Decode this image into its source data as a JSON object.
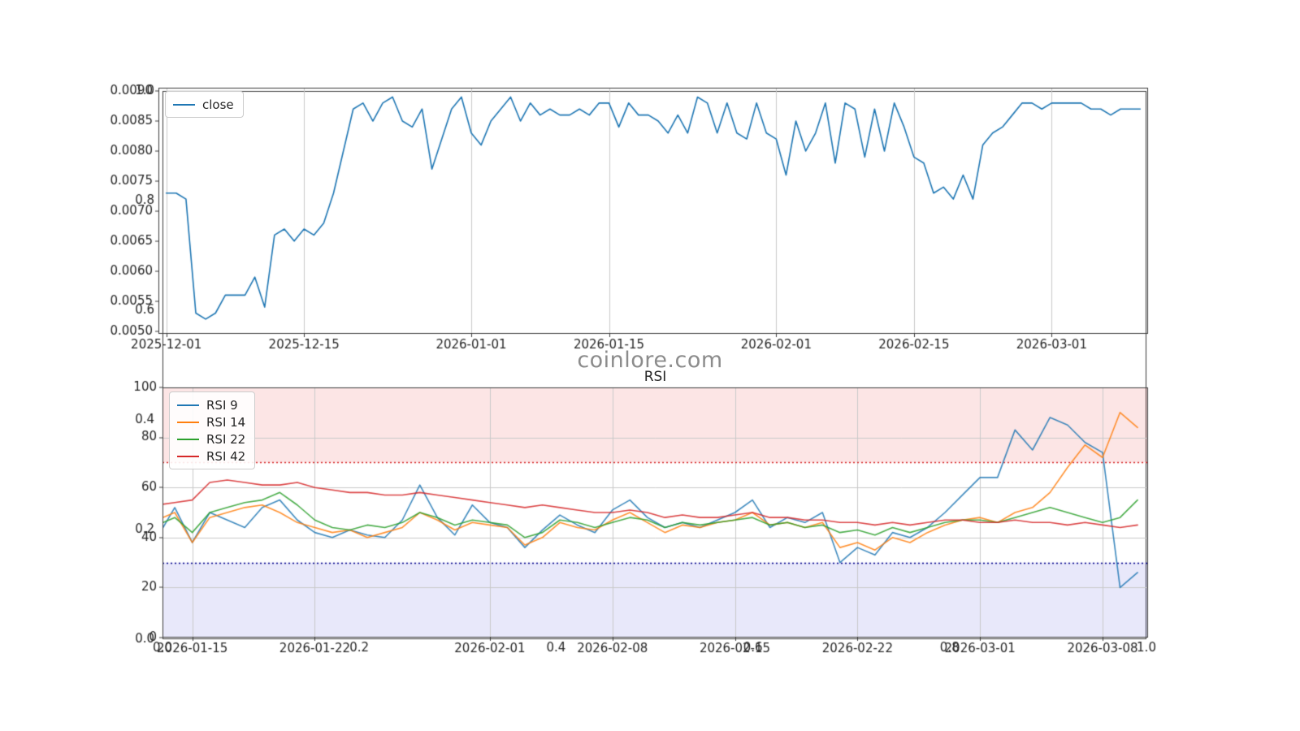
{
  "watermark": "coinlore.com",
  "phantom_axis": {
    "y_tick_labels": [
      "1.0",
      "0.8",
      "0.6",
      "0.4",
      "0.2",
      "0.0"
    ],
    "x_tick_labels": [
      "0.0",
      "0.2",
      "0.4",
      "0.6",
      "0.8",
      "1.0"
    ]
  },
  "chart_data": [
    {
      "id": "price",
      "type": "line",
      "title": "",
      "xlabel": "",
      "ylabel": "",
      "legend_position": "upper left",
      "grid": {
        "vertical": true,
        "horizontal": false
      },
      "x_start_day": 0,
      "xlim_days": [
        -0.8,
        99.8
      ],
      "ylim": [
        0.004955,
        0.009055
      ],
      "y_ticks": [
        {
          "label": "0.0050",
          "value": 0.005
        },
        {
          "label": "0.0055",
          "value": 0.0055
        },
        {
          "label": "0.0060",
          "value": 0.006
        },
        {
          "label": "0.0065",
          "value": 0.0065
        },
        {
          "label": "0.0070",
          "value": 0.007
        },
        {
          "label": "0.0075",
          "value": 0.0075
        },
        {
          "label": "0.0080",
          "value": 0.008
        },
        {
          "label": "0.0085",
          "value": 0.0085
        },
        {
          "label": "0.0090",
          "value": 0.009
        }
      ],
      "x_ticks": [
        {
          "label": "2025-12-01",
          "day": 0
        },
        {
          "label": "2025-12-15",
          "day": 14
        },
        {
          "label": "2026-01-01",
          "day": 31
        },
        {
          "label": "2026-01-15",
          "day": 45
        },
        {
          "label": "2026-02-01",
          "day": 62
        },
        {
          "label": "2026-02-15",
          "day": 76
        },
        {
          "label": "2026-03-01",
          "day": 90
        }
      ],
      "series": [
        {
          "name": "close",
          "color": "#1f77b4",
          "alpha": 1,
          "values": [
            0.0073,
            0.0073,
            0.0072,
            0.0053,
            0.0052,
            0.0053,
            0.0056,
            0.0056,
            0.0056,
            0.0059,
            0.0054,
            0.0066,
            0.0067,
            0.0065,
            0.0067,
            0.0066,
            0.0068,
            0.0073,
            0.008,
            0.0087,
            0.0088,
            0.0085,
            0.0088,
            0.0089,
            0.0085,
            0.0084,
            0.0087,
            0.0077,
            0.0082,
            0.0087,
            0.0089,
            0.0083,
            0.0081,
            0.0085,
            0.0087,
            0.0089,
            0.0085,
            0.0088,
            0.0086,
            0.0087,
            0.0086,
            0.0086,
            0.0087,
            0.0086,
            0.0088,
            0.0088,
            0.0084,
            0.0088,
            0.0086,
            0.0086,
            0.0085,
            0.0083,
            0.0086,
            0.0083,
            0.0089,
            0.0088,
            0.0083,
            0.0088,
            0.0083,
            0.0082,
            0.0088,
            0.0083,
            0.0082,
            0.0076,
            0.0085,
            0.008,
            0.0083,
            0.0088,
            0.0078,
            0.0088,
            0.0087,
            0.0079,
            0.0087,
            0.008,
            0.0088,
            0.0084,
            0.0079,
            0.0078,
            0.0073,
            0.0074,
            0.0072,
            0.0076,
            0.0072,
            0.0081,
            0.0083,
            0.0084,
            0.0086,
            0.0088,
            0.0088,
            0.0087,
            0.0088,
            0.0088,
            0.0088,
            0.0088,
            0.0087,
            0.0087,
            0.0086,
            0.0087,
            0.0087,
            0.0087
          ]
        }
      ]
    },
    {
      "id": "rsi",
      "type": "line",
      "title": "RSI",
      "xlabel": "",
      "ylabel": "",
      "legend_position": "upper left",
      "grid": {
        "vertical": true,
        "horizontal": true
      },
      "x_start_day": 43,
      "xlim_days": [
        43.3,
        99.6
      ],
      "ylim": [
        0,
        100
      ],
      "y_ticks": [
        {
          "label": "0",
          "value": 0
        },
        {
          "label": "20",
          "value": 20
        },
        {
          "label": "40",
          "value": 40
        },
        {
          "label": "60",
          "value": 60
        },
        {
          "label": "80",
          "value": 80
        },
        {
          "label": "100",
          "value": 100
        }
      ],
      "x_ticks": [
        {
          "label": "2026-01-15",
          "day": 45
        },
        {
          "label": "2026-01-22",
          "day": 52
        },
        {
          "label": "2026-02-01",
          "day": 62
        },
        {
          "label": "2026-02-08",
          "day": 69
        },
        {
          "label": "2026-02-15",
          "day": 76
        },
        {
          "label": "2026-02-22",
          "day": 83
        },
        {
          "label": "2026-03-01",
          "day": 90
        },
        {
          "label": "2026-03-08",
          "day": 97
        }
      ],
      "bands": [
        {
          "name": "overbought",
          "from": 70,
          "to": 100,
          "fill": "rgba(229,57,53,0.13)",
          "edge_level": 70,
          "edge_color": "#d62728"
        },
        {
          "name": "oversold",
          "from": 0,
          "to": 30,
          "fill": "rgba(63,63,210,0.12)",
          "edge_level": 30,
          "edge_color": "#00008b"
        }
      ],
      "series": [
        {
          "name": "RSI 9",
          "color": "#1f77b4",
          "alpha": 0.85,
          "values": [
            40,
            52,
            38,
            50,
            47,
            44,
            52,
            55,
            47,
            42,
            40,
            43,
            41,
            40,
            47,
            61,
            48,
            41,
            53,
            46,
            44,
            36,
            43,
            49,
            45,
            42,
            51,
            55,
            48,
            44,
            46,
            44,
            47,
            50,
            55,
            44,
            48,
            46,
            50,
            30,
            36,
            33,
            42,
            40,
            44,
            50,
            57,
            64,
            64,
            83,
            75,
            88,
            85,
            78,
            74,
            20,
            26
          ]
        },
        {
          "name": "RSI 14",
          "color": "#ff7f0e",
          "alpha": 0.85,
          "values": [
            47,
            50,
            38,
            48,
            50,
            52,
            53,
            50,
            46,
            44,
            42,
            43,
            40,
            42,
            44,
            50,
            47,
            43,
            46,
            45,
            44,
            37,
            40,
            46,
            44,
            43,
            47,
            50,
            46,
            42,
            45,
            44,
            46,
            47,
            50,
            45,
            46,
            44,
            46,
            36,
            38,
            35,
            40,
            38,
            42,
            45,
            47,
            48,
            46,
            50,
            52,
            58,
            68,
            77,
            72,
            90,
            84
          ]
        },
        {
          "name": "RSI 22",
          "color": "#2ca02c",
          "alpha": 0.85,
          "values": [
            45,
            48,
            42,
            50,
            52,
            54,
            55,
            58,
            53,
            47,
            44,
            43,
            45,
            44,
            46,
            50,
            48,
            45,
            47,
            46,
            45,
            40,
            42,
            47,
            46,
            44,
            46,
            48,
            47,
            44,
            46,
            45,
            46,
            47,
            48,
            45,
            46,
            44,
            45,
            42,
            43,
            41,
            44,
            42,
            44,
            46,
            47,
            47,
            46,
            48,
            50,
            52,
            50,
            48,
            46,
            48,
            55
          ]
        },
        {
          "name": "RSI 42",
          "color": "#d62728",
          "alpha": 0.85,
          "values": [
            53,
            54,
            55,
            62,
            63,
            62,
            61,
            61,
            62,
            60,
            59,
            58,
            58,
            57,
            57,
            58,
            57,
            56,
            55,
            54,
            53,
            52,
            53,
            52,
            51,
            50,
            50,
            51,
            50,
            48,
            49,
            48,
            48,
            49,
            50,
            48,
            48,
            47,
            47,
            46,
            46,
            45,
            46,
            45,
            46,
            47,
            47,
            46,
            46,
            47,
            46,
            46,
            45,
            46,
            45,
            44,
            45
          ]
        }
      ]
    }
  ]
}
